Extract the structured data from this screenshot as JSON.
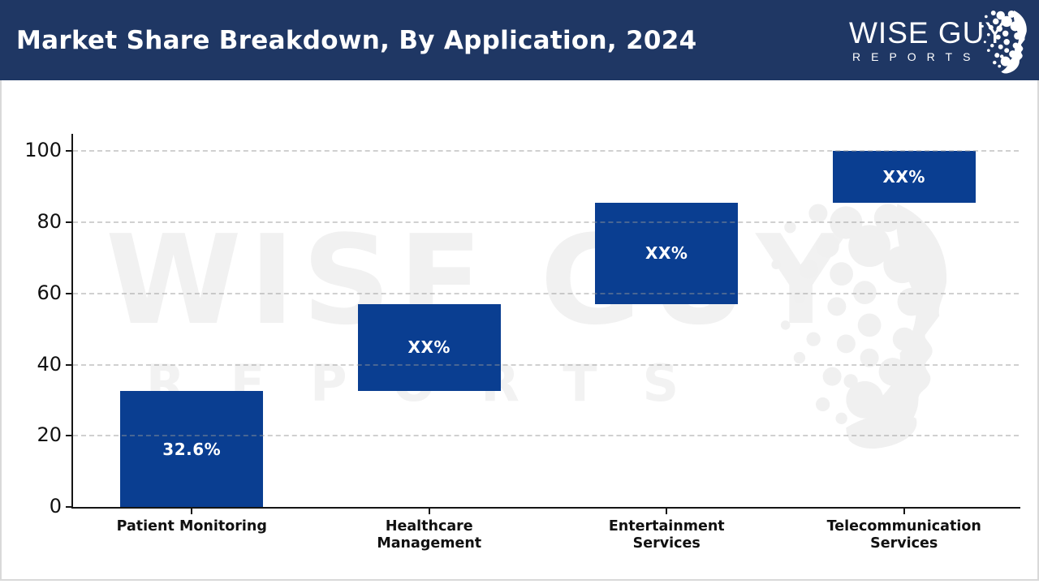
{
  "header": {
    "title": "Market Share Breakdown, By Application, 2024",
    "bg_color": "#1f3764",
    "logo": {
      "line1": "WISE GUY",
      "line2": "REPORTS"
    }
  },
  "watermark": {
    "line1": "WISE GUY",
    "line2": "REPORTS"
  },
  "chart_data": {
    "type": "bar",
    "style": "floating-waterfall",
    "title": "Market Share Breakdown, By Application, 2024",
    "categories": [
      "Patient Monitoring",
      "Healthcare Management",
      "Entertainment Services",
      "Telecommunication Services"
    ],
    "category_label_lines": [
      [
        "Patient Monitoring"
      ],
      [
        "Healthcare",
        "Management"
      ],
      [
        "Entertainment",
        "Services"
      ],
      [
        "Telecommunication",
        "Services"
      ]
    ],
    "bars": [
      {
        "category": "Patient Monitoring",
        "start": 0,
        "end": 32.6,
        "label": "32.6%"
      },
      {
        "category": "Healthcare Management",
        "start": 32.6,
        "end": 57,
        "label": "XX%"
      },
      {
        "category": "Entertainment Services",
        "start": 57,
        "end": 85.5,
        "label": "XX%"
      },
      {
        "category": "Telecommunication Services",
        "start": 85.5,
        "end": 100,
        "label": "XX%"
      }
    ],
    "yticks": [
      0,
      20,
      40,
      60,
      80,
      100
    ],
    "ylim": [
      0,
      105
    ],
    "grid": "horizontal-dashed",
    "legend": null,
    "bar_color": "#0a3e91",
    "value_label_color": "#ffffff",
    "axis_color": "#151515"
  }
}
